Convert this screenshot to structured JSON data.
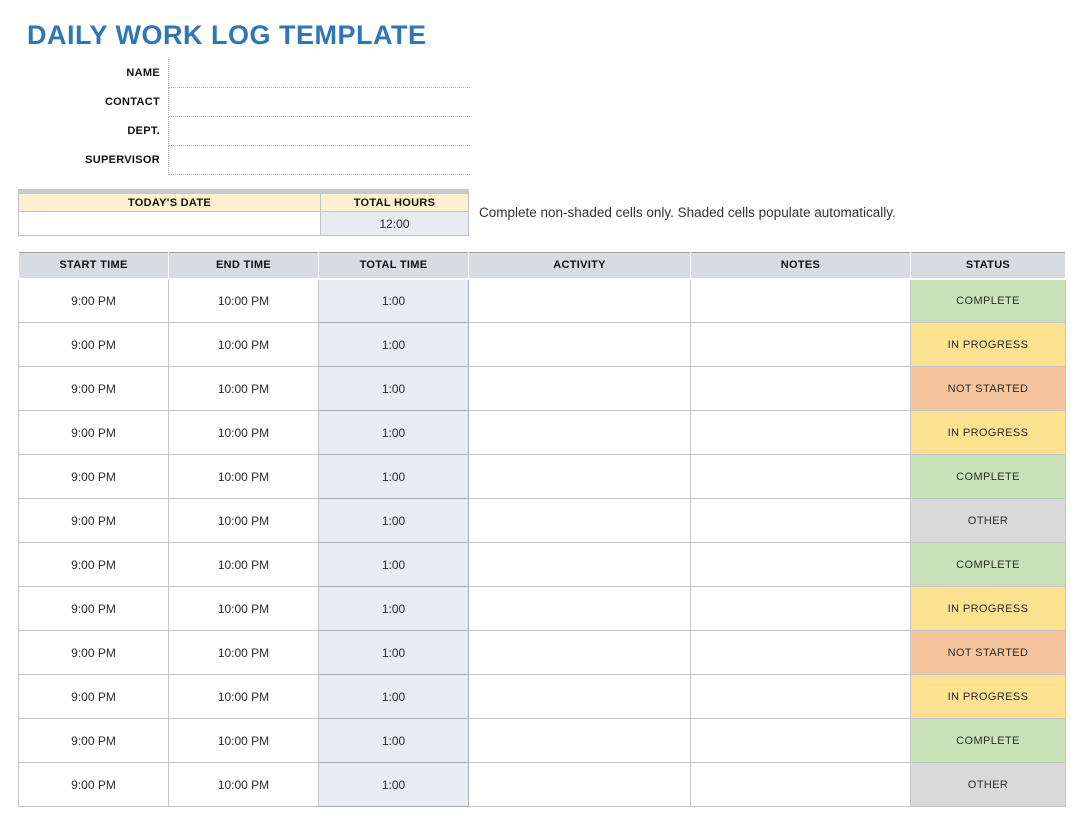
{
  "page": {
    "title": "DAILY WORK LOG TEMPLATE"
  },
  "form": {
    "fields": [
      {
        "id": "name",
        "label": "NAME",
        "value": ""
      },
      {
        "id": "contact",
        "label": "CONTACT",
        "value": ""
      },
      {
        "id": "dept",
        "label": "DEPT.",
        "value": ""
      },
      {
        "id": "supervisor",
        "label": "SUPERVISOR",
        "value": ""
      }
    ]
  },
  "summary": {
    "date_header": "TODAY'S DATE",
    "hours_header": "TOTAL HOURS",
    "date_value": "",
    "hours_value": "12:00",
    "instruction": "Complete non-shaded cells only. Shaded cells populate automatically."
  },
  "log_table": {
    "columns": [
      "START TIME",
      "END TIME",
      "TOTAL TIME",
      "ACTIVITY",
      "NOTES",
      "STATUS"
    ],
    "rows": [
      {
        "start": "9:00 PM",
        "end": "10:00 PM",
        "total": "1:00",
        "activity": "",
        "notes": "",
        "status": "COMPLETE"
      },
      {
        "start": "9:00 PM",
        "end": "10:00 PM",
        "total": "1:00",
        "activity": "",
        "notes": "",
        "status": "IN PROGRESS"
      },
      {
        "start": "9:00 PM",
        "end": "10:00 PM",
        "total": "1:00",
        "activity": "",
        "notes": "",
        "status": "NOT STARTED"
      },
      {
        "start": "9:00 PM",
        "end": "10:00 PM",
        "total": "1:00",
        "activity": "",
        "notes": "",
        "status": "IN PROGRESS"
      },
      {
        "start": "9:00 PM",
        "end": "10:00 PM",
        "total": "1:00",
        "activity": "",
        "notes": "",
        "status": "COMPLETE"
      },
      {
        "start": "9:00 PM",
        "end": "10:00 PM",
        "total": "1:00",
        "activity": "",
        "notes": "",
        "status": "OTHER"
      },
      {
        "start": "9:00 PM",
        "end": "10:00 PM",
        "total": "1:00",
        "activity": "",
        "notes": "",
        "status": "COMPLETE"
      },
      {
        "start": "9:00 PM",
        "end": "10:00 PM",
        "total": "1:00",
        "activity": "",
        "notes": "",
        "status": "IN PROGRESS"
      },
      {
        "start": "9:00 PM",
        "end": "10:00 PM",
        "total": "1:00",
        "activity": "",
        "notes": "",
        "status": "NOT STARTED"
      },
      {
        "start": "9:00 PM",
        "end": "10:00 PM",
        "total": "1:00",
        "activity": "",
        "notes": "",
        "status": "IN PROGRESS"
      },
      {
        "start": "9:00 PM",
        "end": "10:00 PM",
        "total": "1:00",
        "activity": "",
        "notes": "",
        "status": "COMPLETE"
      },
      {
        "start": "9:00 PM",
        "end": "10:00 PM",
        "total": "1:00",
        "activity": "",
        "notes": "",
        "status": "OTHER"
      }
    ]
  },
  "status_colors": {
    "COMPLETE": "#C9E2B8",
    "IN PROGRESS": "#FDE38F",
    "NOT STARTED": "#F5C49C",
    "OTHER": "#D9D9D9"
  },
  "theme": {
    "title_color": "#2E76B5",
    "table_header_bg": "#D8DBE0",
    "cream_header_bg": "#FCF1CE",
    "shaded_cell_bg": "#E8EBF1"
  }
}
